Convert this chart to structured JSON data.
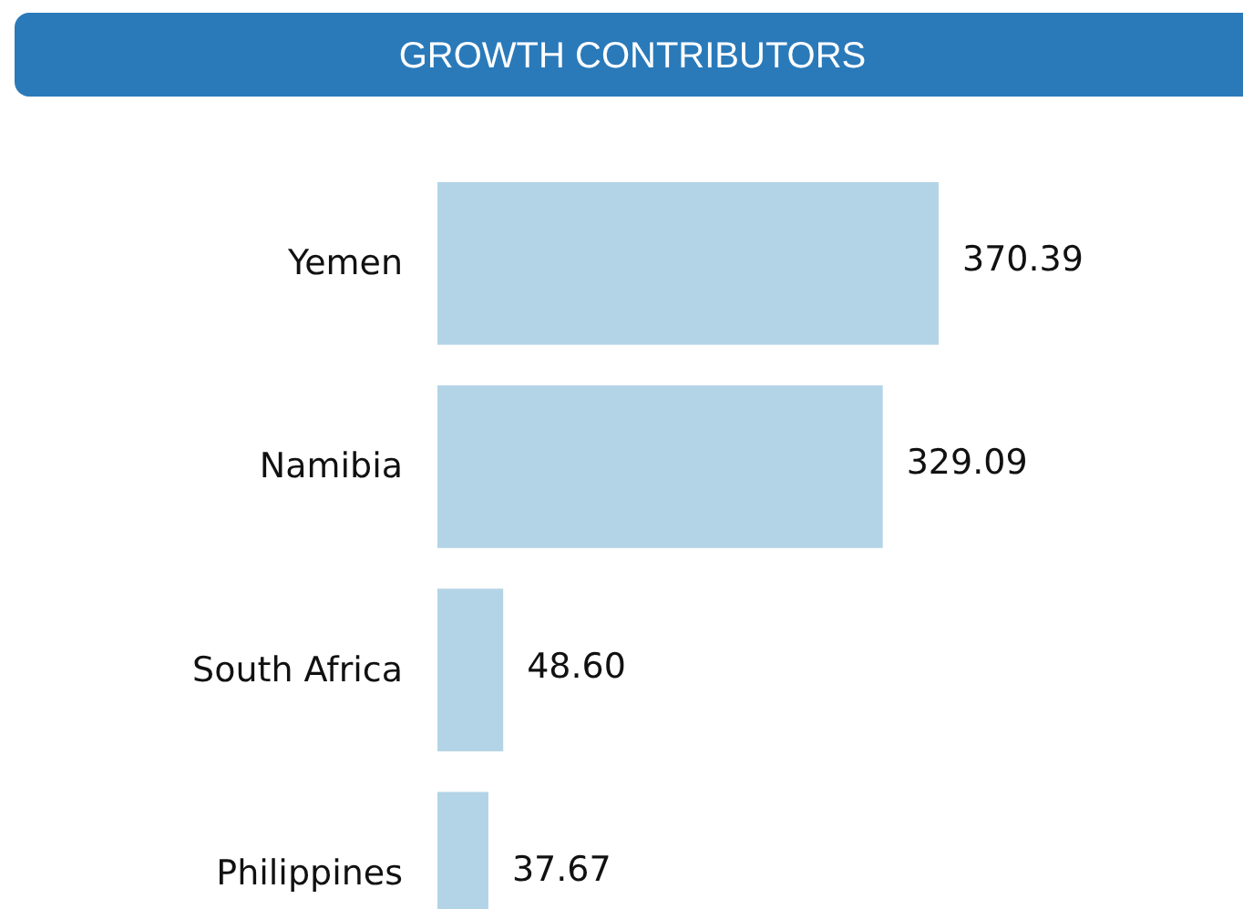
{
  "chart_data": {
    "type": "bar",
    "orientation": "horizontal",
    "title": "GROWTH CONTRIBUTORS",
    "categories": [
      "Yemen",
      "Namibia",
      "South Africa",
      "Philippines"
    ],
    "values": [
      370.39,
      329.09,
      48.6,
      37.67
    ],
    "value_labels": [
      "370.39",
      "329.09",
      "48.60",
      "37.67"
    ],
    "color": "#b3d4e6"
  }
}
